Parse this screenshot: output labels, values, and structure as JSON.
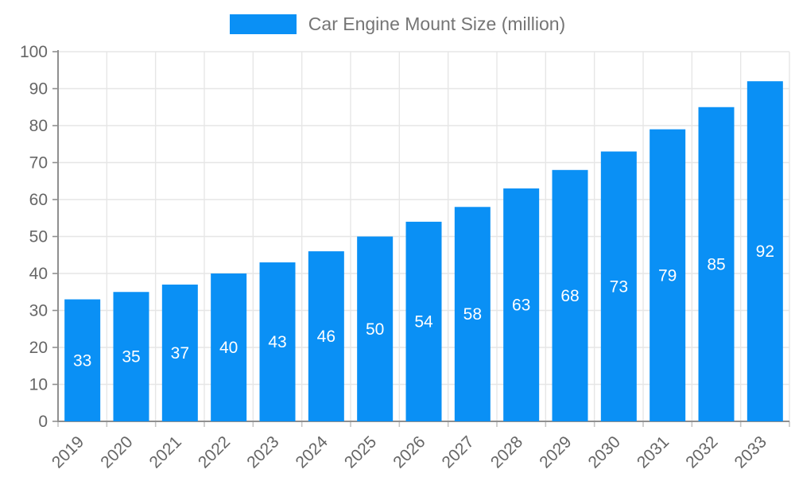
{
  "chart_data": {
    "type": "bar",
    "title": "Car Engine Mount Size (million)",
    "legend": {
      "label": "Car Engine Mount Size (million)",
      "position": "top-center"
    },
    "categories": [
      "2019",
      "2020",
      "2021",
      "2022",
      "2023",
      "2024",
      "2025",
      "2026",
      "2027",
      "2028",
      "2029",
      "2030",
      "2031",
      "2032",
      "2033"
    ],
    "values": [
      33,
      35,
      37,
      40,
      43,
      46,
      50,
      54,
      58,
      63,
      68,
      73,
      79,
      85,
      92
    ],
    "xlabel": "",
    "ylabel": "",
    "ylim": [
      0,
      100
    ],
    "y_step": 10,
    "y_tick_labels": [
      "0",
      "10",
      "20",
      "30",
      "40",
      "50",
      "60",
      "70",
      "80",
      "90",
      "100"
    ],
    "grid": true,
    "bar_labels_inside": true,
    "x_label_rotation_deg": -45
  },
  "colors": {
    "bar": "#0a90f5",
    "bar_label": "#ffffff",
    "axis_line": "#8f8f8f",
    "grid_line": "#e6e6e6",
    "x_tick": "#c4c4c4",
    "tick_label": "#666666",
    "legend_text": "#757575",
    "background": "#ffffff"
  }
}
